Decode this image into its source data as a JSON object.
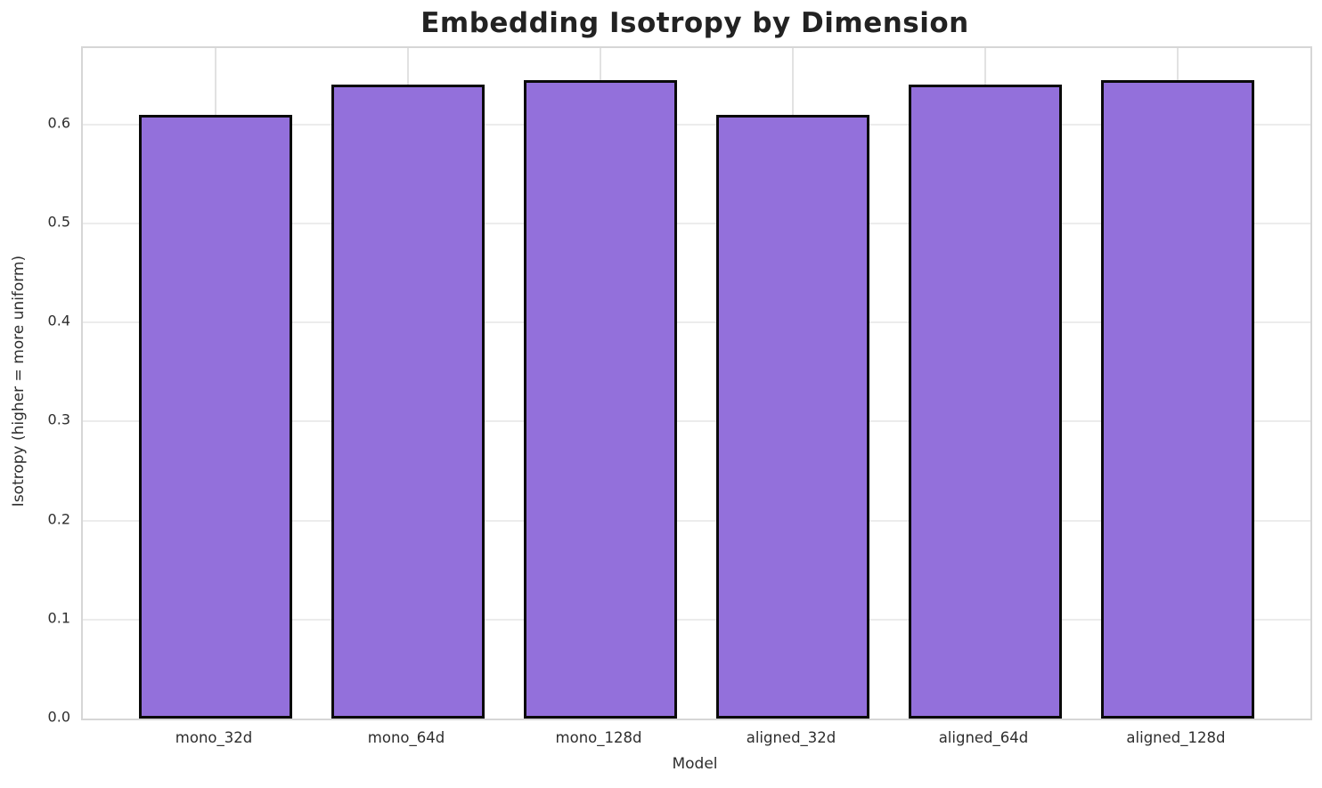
{
  "figure": {
    "kind": "static-plot-image"
  },
  "chart_data": {
    "type": "bar",
    "title": "Embedding Isotropy by Dimension",
    "xlabel": "Model",
    "ylabel": "Isotropy (higher = more uniform)",
    "categories": [
      "mono_32d",
      "mono_64d",
      "mono_128d",
      "aligned_32d",
      "aligned_64d",
      "aligned_128d"
    ],
    "values": [
      0.61,
      0.64,
      0.645,
      0.61,
      0.64,
      0.645
    ],
    "ytick_labels": [
      "0.0",
      "0.1",
      "0.2",
      "0.3",
      "0.4",
      "0.5",
      "0.6"
    ],
    "ytick_values": [
      0.0,
      0.1,
      0.2,
      0.3,
      0.4,
      0.5,
      0.6
    ],
    "ylim": [
      0,
      0.677
    ],
    "grid": "both",
    "legend_position": "none",
    "bar_fill_color": "#9370DB",
    "bar_edge_color": "#0a0a0a",
    "grid_color": "#e8e8e8",
    "spine_color": "#d6d6d6",
    "text_color": "#2e2e2e",
    "background_color": "#ffffff"
  }
}
